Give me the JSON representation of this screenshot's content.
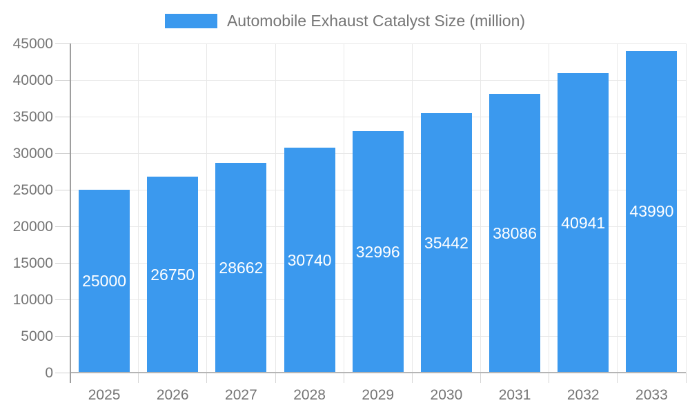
{
  "legend": {
    "label": "Automobile Exhaust Catalyst Size (million)",
    "swatch_color": "#3B99EE"
  },
  "chart_data": {
    "type": "bar",
    "title": "Automobile Exhaust Catalyst Size (million)",
    "series_name": "Automobile Exhaust Catalyst Size (million)",
    "categories": [
      "2025",
      "2026",
      "2027",
      "2028",
      "2029",
      "2030",
      "2031",
      "2032",
      "2033"
    ],
    "values": [
      25000,
      26750,
      28662,
      30740,
      32996,
      35442,
      38086,
      40941,
      43990
    ],
    "value_labels": [
      "25000",
      "26750",
      "28662",
      "30740",
      "32996",
      "35442",
      "38086",
      "40941",
      "43990"
    ],
    "xlabel": "",
    "ylabel": "",
    "ylim": [
      0,
      45000
    ],
    "yticks": [
      0,
      5000,
      10000,
      15000,
      20000,
      25000,
      30000,
      35000,
      40000,
      45000
    ],
    "ytick_labels": [
      "0",
      "5000",
      "10000",
      "15000",
      "20000",
      "25000",
      "30000",
      "35000",
      "40000",
      "45000"
    ],
    "grid": true,
    "legend_position": "top",
    "bar_color": "#3B99EE",
    "value_label_color": "#FFFFFF",
    "axis_label_color": "#757575"
  }
}
